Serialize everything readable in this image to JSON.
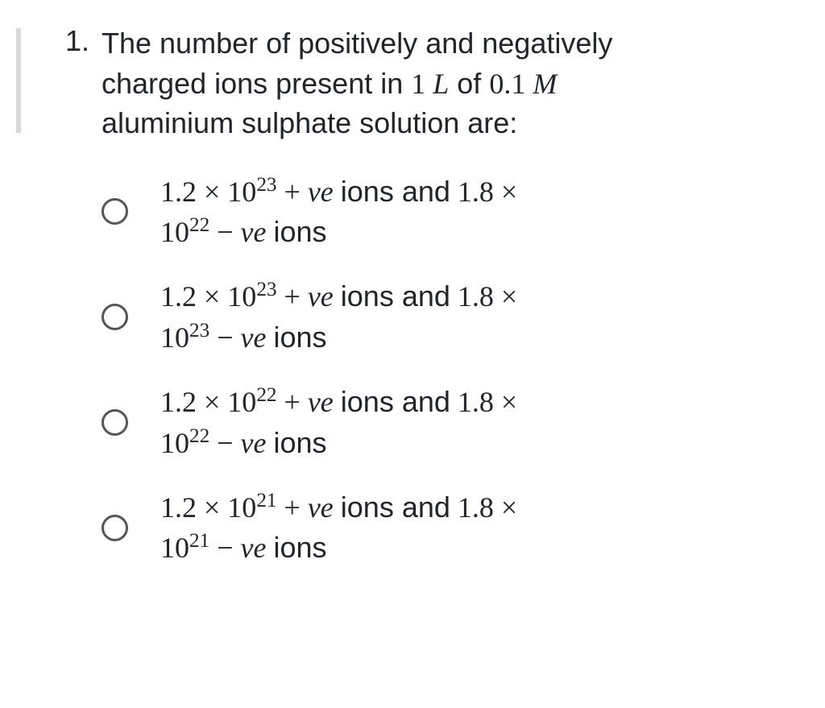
{
  "colors": {
    "background": "#ffffff",
    "text": "#212529",
    "accent_bar": "#d8d8d8",
    "radio_border": "#555555"
  },
  "typography": {
    "question_font": "Arial",
    "question_size_pt": 27,
    "option_math_font": "Times New Roman",
    "option_size_pt": 27
  },
  "question": {
    "number": "1.",
    "line1": "The number of positively and negatively",
    "line2_pre": "charged ions present in ",
    "line2_val1": "1",
    "line2_unit1": "L",
    "line2_mid": " of ",
    "line2_val2": "0.1",
    "line2_unit2": "M",
    "line3": "aluminium sulphate solution are:"
  },
  "options": [
    {
      "coef1": "1.2",
      "exp1": "23",
      "sign1": "+",
      "mid": "ions and",
      "coef2": "1.8",
      "exp2": "22",
      "sign2": "−",
      "tail": "ions"
    },
    {
      "coef1": "1.2",
      "exp1": "23",
      "sign1": "+",
      "mid": "ions and",
      "coef2": "1.8",
      "exp2": "23",
      "sign2": "−",
      "tail": "ions"
    },
    {
      "coef1": "1.2",
      "exp1": "22",
      "sign1": "+",
      "mid": "ions and",
      "coef2": "1.8",
      "exp2": "22",
      "sign2": "−",
      "tail": "ions"
    },
    {
      "coef1": "1.2",
      "exp1": "21",
      "sign1": "+",
      "mid": "ions and",
      "coef2": "1.8",
      "exp2": "21",
      "sign2": "−",
      "tail": "ions"
    }
  ]
}
